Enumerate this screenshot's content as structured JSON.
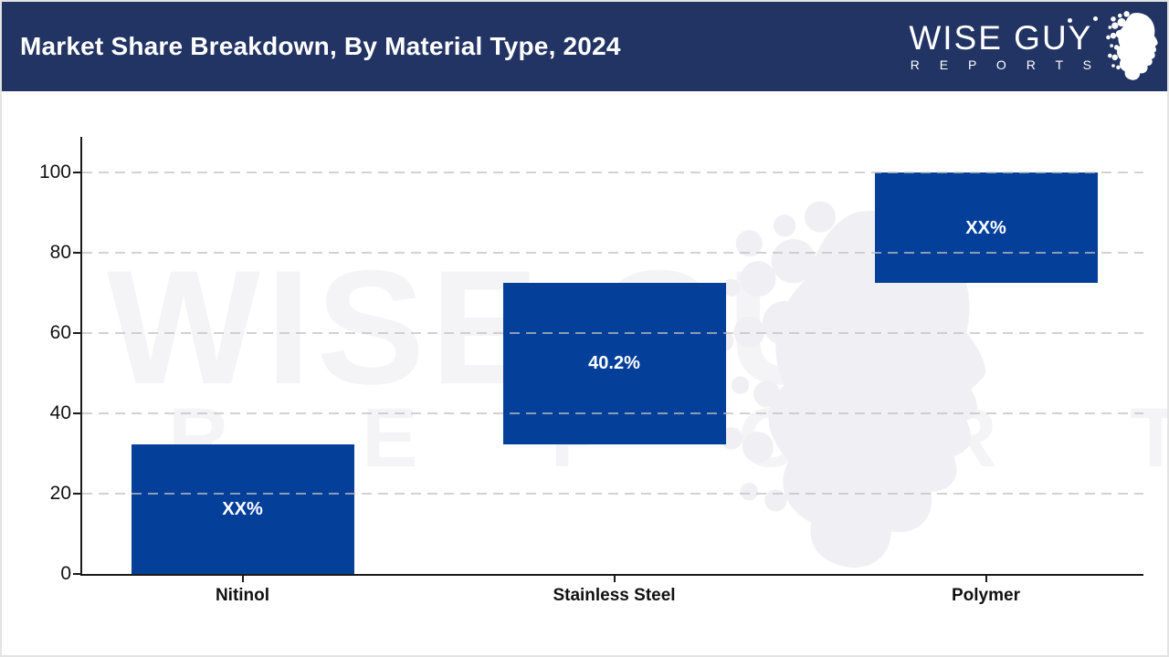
{
  "header": {
    "title": "Market Share Breakdown, By Material Type, 2024",
    "logo": {
      "line1": "WISE GUY",
      "line2": "R E P O R T S"
    }
  },
  "watermark": {
    "line1": "WISE GUY",
    "line2": "R E P O R T S"
  },
  "colors": {
    "header_bg": "#223463",
    "bar": "#04409a",
    "axis": "#1a1a1a",
    "grid": "#d9d9d9",
    "title_text": "#ffffff",
    "bar_label_text": "#ffffff",
    "watermark": "#f4f4f7"
  },
  "chart_data": {
    "type": "bar",
    "subtype": "waterfall-floating-bars",
    "title": "Market Share Breakdown, By Material Type, 2024",
    "categories": [
      "Nitinol",
      "Stainless Steel",
      "Polymer"
    ],
    "bars": [
      {
        "category": "Nitinol",
        "start": 0,
        "end": 32.3,
        "label": "XX%"
      },
      {
        "category": "Stainless Steel",
        "start": 32.3,
        "end": 72.5,
        "label": "40.2%"
      },
      {
        "category": "Polymer",
        "start": 72.5,
        "end": 100,
        "label": "XX%"
      }
    ],
    "yticks": [
      0,
      20,
      40,
      60,
      80,
      100
    ],
    "ylim": [
      0,
      106
    ],
    "xlabel": "",
    "ylabel": "",
    "grid": "horizontal-dashed-over-bars",
    "legend": "none"
  }
}
